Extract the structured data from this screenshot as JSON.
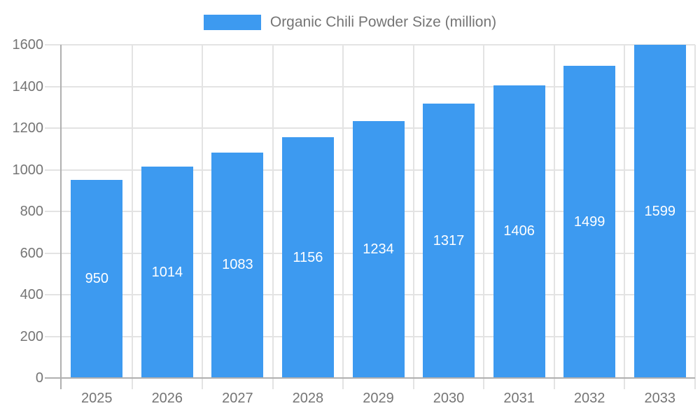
{
  "chart_data": {
    "type": "bar",
    "title": "",
    "legend": "Organic Chili Powder Size (million)",
    "legend_position": "top",
    "categories": [
      "2025",
      "2026",
      "2027",
      "2028",
      "2029",
      "2030",
      "2031",
      "2032",
      "2033"
    ],
    "values": [
      950,
      1014,
      1083,
      1156,
      1234,
      1317,
      1406,
      1499,
      1599
    ],
    "xlabel": "",
    "ylabel": "",
    "ylim": [
      0,
      1600
    ],
    "ytick_step": 200,
    "grid": true
  },
  "colors": {
    "bar": "#3d9af0",
    "bar_label": "#ffffff",
    "grid": "#e3e3e3",
    "axis": "#b0b0b0",
    "text": "#757575"
  }
}
